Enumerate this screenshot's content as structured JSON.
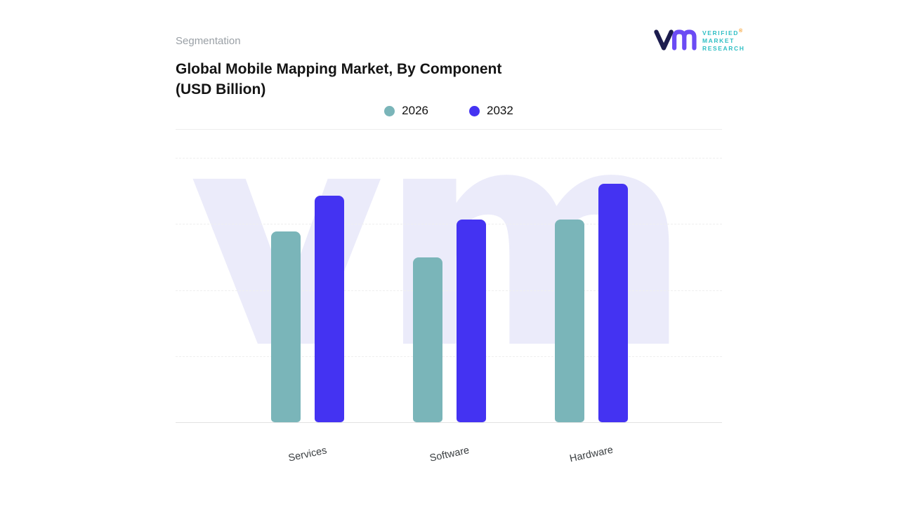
{
  "header": {
    "eyebrow": "Segmentation",
    "title_line1": "Global Mobile Mapping Market, By Component",
    "title_line2": "(USD Billion)"
  },
  "logo": {
    "mark": "vm-monogram",
    "mark_color_left": "#1c1c4e",
    "mark_color_right": "#6c4bf4",
    "line1": "VERIFIED",
    "line2": "MARKET",
    "line3": "RESEARCH",
    "registered": "®",
    "text_color": "#2fbfc4"
  },
  "legend": {
    "items": [
      {
        "label": "2026",
        "color": "#7ab5b9"
      },
      {
        "label": "2032",
        "color": "#4433f2"
      }
    ]
  },
  "watermark_text": "vm",
  "chart_data": {
    "type": "bar",
    "title": "Global Mobile Mapping Market, By Component (USD Billion)",
    "categories": [
      "Services",
      "Software",
      "Hardware"
    ],
    "series": [
      {
        "name": "2026",
        "color": "#7ab5b9",
        "values": [
          80,
          69,
          85
        ]
      },
      {
        "name": "2032",
        "color": "#4433f2",
        "values": [
          95,
          85,
          100
        ]
      }
    ],
    "xlabel": "",
    "ylabel": "",
    "ylim": [
      0,
      100
    ],
    "grid": "horizontal-dashed",
    "legend_position": "top-center",
    "value_labels_shown": false,
    "y_axis_labels_shown": false
  }
}
